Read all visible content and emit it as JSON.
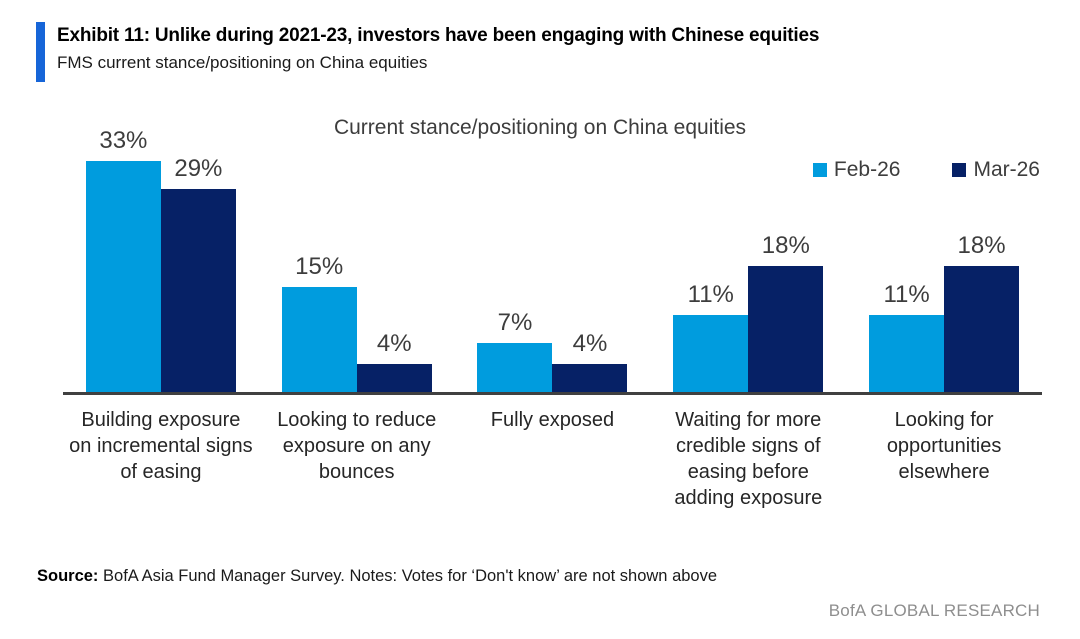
{
  "header": {
    "title": "Exhibit 11: Unlike during 2021-23, investors have been engaging with Chinese equities",
    "subtitle": "FMS current stance/positioning on China equities"
  },
  "chart_data": {
    "type": "bar",
    "title": "Current stance/positioning on China equities",
    "categories": [
      "Building exposure on incremental signs of easing",
      "Looking to reduce exposure on any bounces",
      "Fully exposed",
      "Waiting for more credible signs of easing before adding exposure",
      "Looking for opportunities elsewhere"
    ],
    "series": [
      {
        "name": "Feb-26",
        "color": "#009cde",
        "values": [
          33,
          15,
          7,
          11,
          11
        ]
      },
      {
        "name": "Mar-26",
        "color": "#062166",
        "values": [
          29,
          4,
          4,
          18,
          18
        ]
      }
    ],
    "value_suffix": "%",
    "ylim": [
      0,
      35
    ],
    "grid": false,
    "data_labels": true,
    "legend_position": "top-right",
    "axis_color": "#404040"
  },
  "footer": {
    "source_label": "Source:",
    "source_text": "BofA Asia Fund Manager Survey. Notes: Votes for ‘Don't know’ are not shown above",
    "brand": "BofA GLOBAL RESEARCH"
  },
  "colors": {
    "accent": "#1665d8",
    "feb_blue": "#009cde",
    "mar_navy": "#062166",
    "brand_gray": "#8e8e8e"
  }
}
